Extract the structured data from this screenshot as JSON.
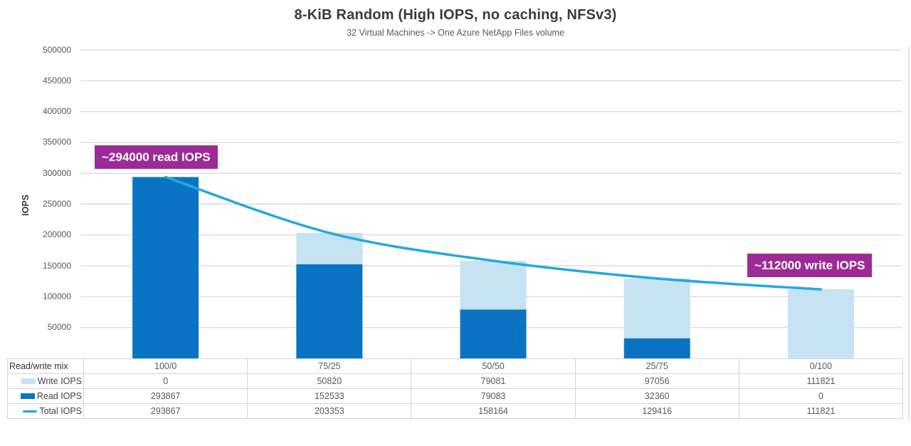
{
  "header": {
    "title": "8-KiB Random (High IOPS, no caching, NFSv3)",
    "subtitle": "32 Virtual Machines -> One Azure NetApp Files volume"
  },
  "y_axis": {
    "label": "IOPS",
    "ticks": [
      "500000",
      "450000",
      "400000",
      "350000",
      "300000",
      "250000",
      "200000",
      "150000",
      "100000",
      "50000"
    ]
  },
  "annotations": {
    "read": {
      "text": "~294000 read IOPS"
    },
    "write": {
      "text": "~112000 write IOPS"
    },
    "background_color": "#9c2b98",
    "text_color": "#ffffff"
  },
  "table": {
    "row_header": "Read/write mix"
  },
  "chart_data": {
    "type": "bar",
    "subtype": "stacked-bars-with-line-overlay",
    "title": "8-KiB Random (High IOPS, no caching, NFSv3)",
    "subtitle": "32 Virtual Machines -> One Azure NetApp Files volume",
    "xlabel": "Read/write mix",
    "ylabel": "IOPS",
    "categories": [
      "100/0",
      "75/25",
      "50/50",
      "25/75",
      "0/100"
    ],
    "series": [
      {
        "name": "Write IOPS",
        "type": "bar",
        "stack_position": "top",
        "color": "#c6e2f3",
        "values": [
          0,
          50820,
          79081,
          97056,
          111821
        ]
      },
      {
        "name": "Read IOPS",
        "type": "bar",
        "stack_position": "bottom",
        "color": "#0b74c2",
        "values": [
          293867,
          152533,
          79083,
          32360,
          0
        ]
      },
      {
        "name": "Total IOPS",
        "type": "line",
        "color": "#24a7e3",
        "values": [
          293867,
          203353,
          158164,
          129416,
          111821
        ]
      }
    ],
    "ylim": [
      0,
      500000
    ],
    "ytick_step": 50000,
    "grid": true,
    "grid_color": "#dcdcdc",
    "legend_position": "table-left",
    "annotations": [
      "~294000 read IOPS",
      "~112000 write IOPS"
    ]
  }
}
